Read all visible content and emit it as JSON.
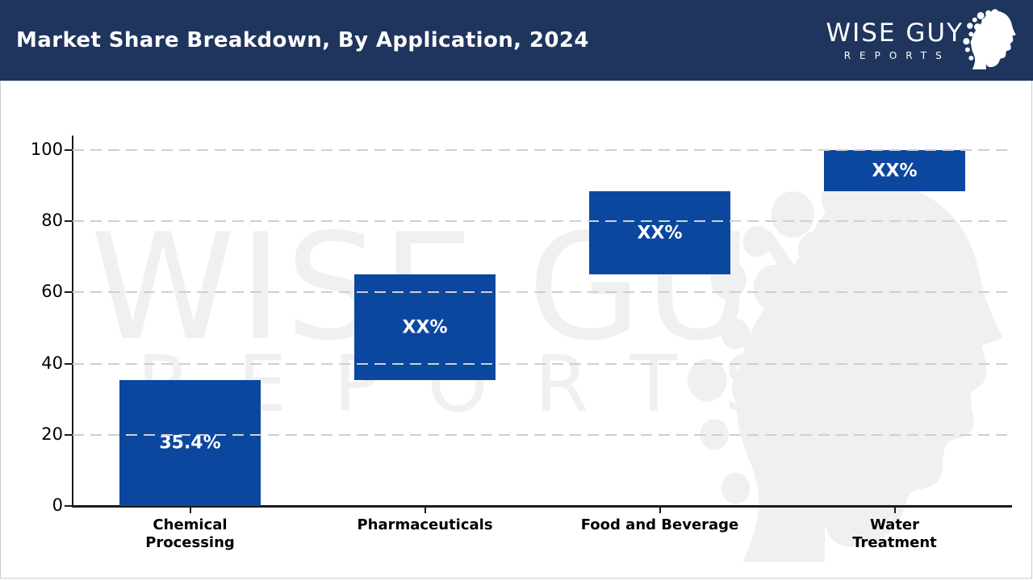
{
  "header": {
    "title": "Market Share Breakdown, By Application, 2024",
    "logo": {
      "line1": "WISE GUY",
      "line2": "REPORTS"
    }
  },
  "watermark": {
    "line1": "WISE GUY",
    "line2": "REPORTS"
  },
  "chart_data": {
    "type": "bar",
    "subtype": "waterfall-floating-bars",
    "title": "Market Share Breakdown, By Application, 2024",
    "categories": [
      "Chemical\nProcessing",
      "Pharmaceuticals",
      "Food and Beverage",
      "Water Treatment"
    ],
    "segments": [
      {
        "category": "Chemical\nProcessing",
        "start": 0,
        "end": 35.4,
        "label": "35.4%"
      },
      {
        "category": "Pharmaceuticals",
        "start": 35.4,
        "end": 65.0,
        "label": "XX%"
      },
      {
        "category": "Food and Beverage",
        "start": 65.0,
        "end": 88.4,
        "label": "XX%"
      },
      {
        "category": "Water Treatment",
        "start": 88.4,
        "end": 100,
        "label": "XX%"
      }
    ],
    "xlabel": "",
    "ylabel": "",
    "ylim": [
      0,
      100
    ],
    "yticks": [
      0,
      20,
      40,
      60,
      80,
      100
    ],
    "grid": "dashed-horizontal",
    "legend": "none",
    "colors": {
      "bar": "#0c479f",
      "bar_label": "#ffffff",
      "header_bg": "#1f355e",
      "gridline": "#cfcfcf",
      "axis": "#1a1a1a"
    }
  }
}
